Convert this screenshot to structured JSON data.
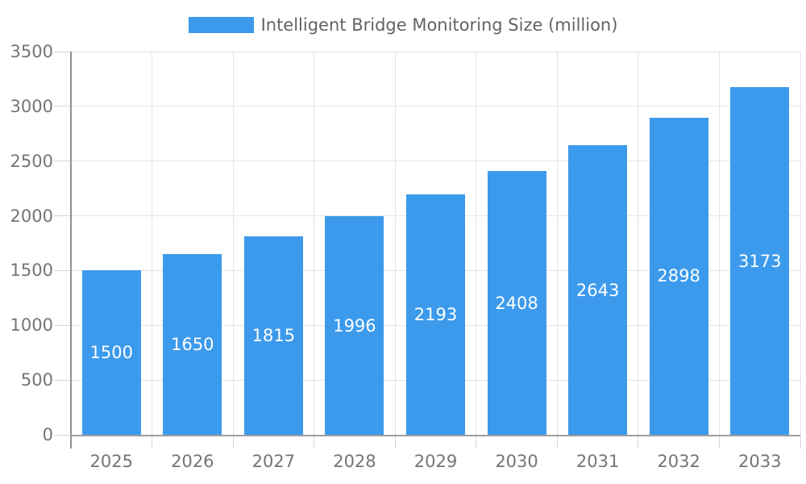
{
  "chart_data": {
    "type": "bar",
    "title": "Intelligent Bridge Monitoring Size (million)",
    "legend_position": "top",
    "categories": [
      "2025",
      "2026",
      "2027",
      "2028",
      "2029",
      "2030",
      "2031",
      "2032",
      "2033"
    ],
    "series": [
      {
        "name": "Intelligent Bridge Monitoring Size (million)",
        "values": [
          1500,
          1650,
          1815,
          1996,
          2193,
          2408,
          2643,
          2898,
          3173
        ]
      }
    ],
    "values": [
      1500,
      1650,
      1815,
      1996,
      2193,
      2408,
      2643,
      2898,
      3173
    ],
    "value_labels": [
      "1500",
      "1650",
      "1815",
      "1996",
      "2193",
      "2408",
      "2643",
      "2898",
      "3173"
    ],
    "xlabel": "",
    "ylabel": "",
    "ylim": [
      0,
      3500
    ],
    "y_ticks": [
      0,
      500,
      1000,
      1500,
      2000,
      2500,
      3000,
      3500
    ],
    "grid": true
  },
  "colors": {
    "bar": "#3C9AEC",
    "grid": "#e4e4e4",
    "tick": "#d6d6d6",
    "y_axis": "#8f8f8f",
    "x_axis": "#9e9e9e",
    "axis_label": "#757575",
    "legend_text": "#636363",
    "value_label": "#ffffff",
    "background": "#ffffff"
  }
}
